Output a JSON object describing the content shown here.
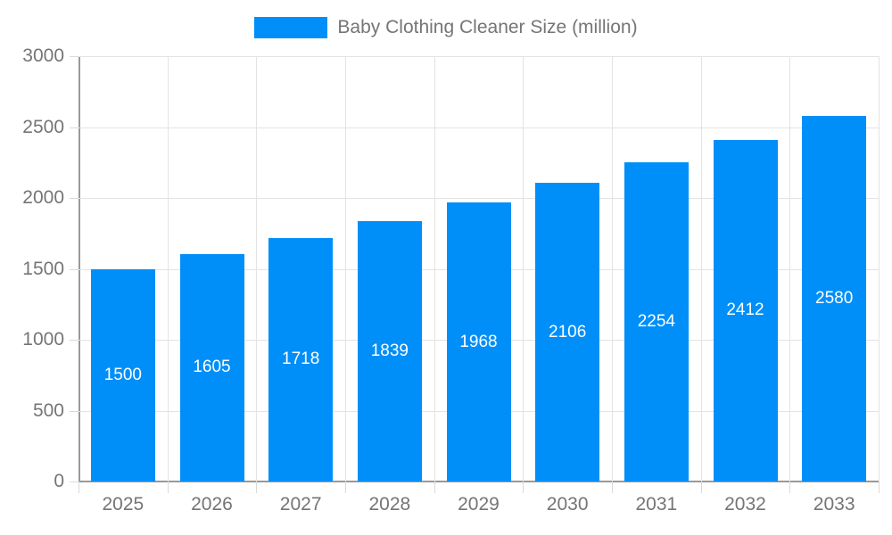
{
  "legend": {
    "label": "Baby Clothing Cleaner Size (million)"
  },
  "chart_data": {
    "type": "bar",
    "title": "Baby Clothing Cleaner Size (million)",
    "categories": [
      "2025",
      "2026",
      "2027",
      "2028",
      "2029",
      "2030",
      "2031",
      "2032",
      "2033"
    ],
    "values": [
      1500,
      1605,
      1718,
      1839,
      1968,
      2106,
      2254,
      2412,
      2580
    ],
    "xlabel": "",
    "ylabel": "",
    "ylim": [
      0,
      3000
    ],
    "yticks": [
      0,
      500,
      1000,
      1500,
      2000,
      2500,
      3000
    ],
    "grid": true,
    "legend_position": "top",
    "value_labels": "inside-center"
  },
  "colors": {
    "bar": "#008ff8",
    "grid": "#e3e3e3",
    "axis": "#999999",
    "tick": "#d9d9d9",
    "text": "#757575",
    "value_label": "#ffffff",
    "background": "#ffffff"
  }
}
